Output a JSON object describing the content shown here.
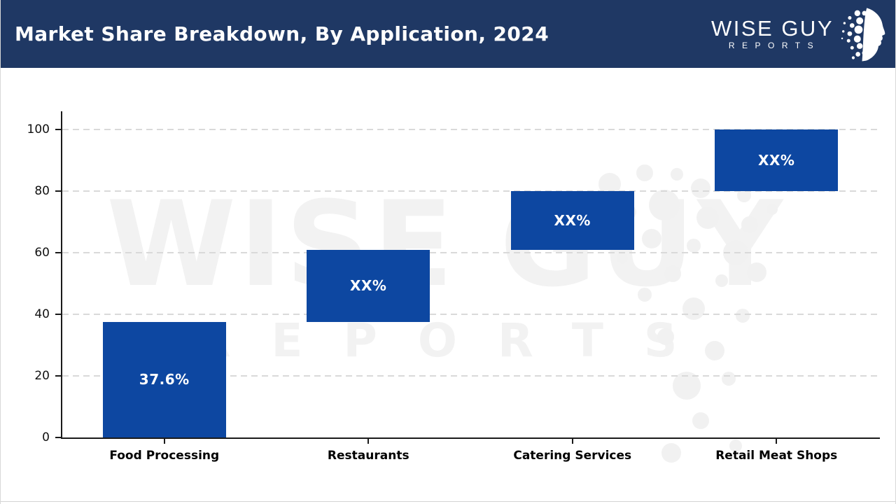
{
  "header": {
    "title": "Market Share Breakdown, By Application, 2024",
    "background_color": "#1f3864"
  },
  "logo": {
    "line1": "WISE GUY",
    "line2": "REPORTS"
  },
  "watermark": {
    "line1": "WISE GUY",
    "line2": "REPORTS"
  },
  "chart_data": {
    "type": "bar",
    "subtype": "waterfall",
    "title": "Market Share Breakdown, By Application, 2024",
    "xlabel": "",
    "ylabel": "",
    "categories": [
      "Food Processing",
      "Restaurants",
      "Catering Services",
      "Retail Meat Shops"
    ],
    "bars": [
      {
        "label": "37.6%",
        "start": 0,
        "end": 37.6
      },
      {
        "label": "XX%",
        "start": 37.6,
        "end": 61
      },
      {
        "label": "XX%",
        "start": 61,
        "end": 80
      },
      {
        "label": "XX%",
        "start": 80,
        "end": 100
      }
    ],
    "y_ticks": [
      0,
      20,
      40,
      60,
      80,
      100
    ],
    "ylim": [
      0,
      100
    ],
    "grid": "dashed horizontal",
    "legend": "none",
    "bar_color": "#0d47a1",
    "bar_label_color": "#ffffff",
    "axis_color": "#1a1a1a",
    "gridline_color": "#d9d9d9",
    "background_color": "#ffffff"
  }
}
